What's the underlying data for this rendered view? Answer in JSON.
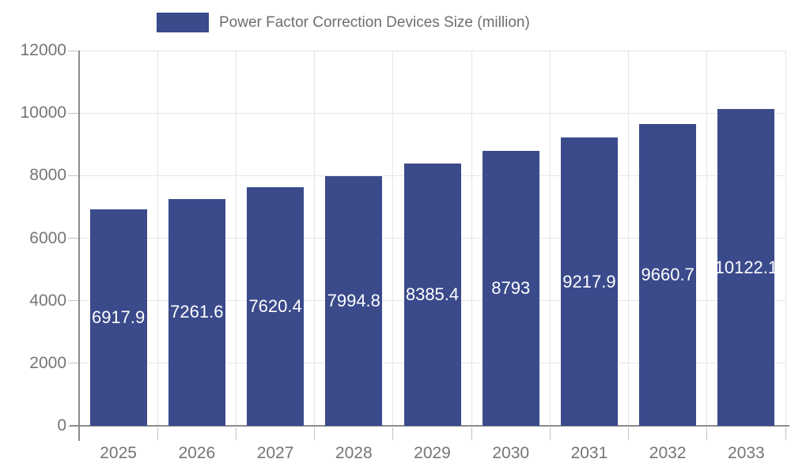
{
  "chart_data": {
    "type": "bar",
    "legend": "Power Factor Correction Devices Size (million)",
    "categories": [
      "2025",
      "2026",
      "2027",
      "2028",
      "2029",
      "2030",
      "2031",
      "2032",
      "2033"
    ],
    "values": [
      6917.9,
      7261.6,
      7620.4,
      7994.8,
      8385.4,
      8793,
      9217.9,
      9660.7,
      10122.1
    ],
    "value_labels": [
      "6917.9",
      "7261.6",
      "7620.4",
      "7994.8",
      "8385.4",
      "8793",
      "9217.9",
      "9660.7",
      "10122.1"
    ],
    "ylim": [
      0,
      12000
    ],
    "yticks": [
      0,
      2000,
      4000,
      6000,
      8000,
      10000,
      12000
    ],
    "grid": true,
    "legend_position": "top-left",
    "colors": {
      "bar": "#3A4A8B",
      "bar_label_text": "#FFFFFF",
      "axis_text": "#757575",
      "legend_text": "#6E6E6E",
      "gridline": "#E6E6E6",
      "axis_line": "#8C8C8C",
      "tick": "#C4C4C4",
      "background": "#FFFFFF"
    }
  }
}
